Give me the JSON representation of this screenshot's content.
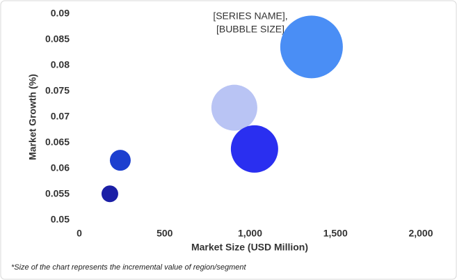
{
  "chart_data": {
    "type": "bubble",
    "xlabel": "Market Size (USD Million)",
    "ylabel": "Market Growth (%)",
    "annotation": [
      "[SERIES NAME],",
      "[BUBBLE SIZE]"
    ],
    "footnote": "*Size of the chart represents the incremental value of region/segment",
    "x": [
      179,
      240,
      908,
      1026,
      1360
    ],
    "values": [
      0.0551,
      0.0616,
      0.0718,
      0.0638,
      0.0836
    ],
    "sizes": [
      144,
      225,
      1089,
      1156,
      2025
    ],
    "colors": [
      "#1b1fa6",
      "#1c3fcf",
      "#b9c4f4",
      "#2a2ff0",
      "#4a8ef5"
    ],
    "xlim": [
      0,
      2000
    ],
    "xticks": [
      0,
      500,
      {
        "value": 1000,
        "label": "1,000"
      },
      {
        "value": 1500,
        "label": "1,500"
      },
      {
        "value": 2000,
        "label": "2,000"
      }
    ],
    "ylim": [
      0.05,
      0.09
    ],
    "yticks": [
      0.05,
      0.055,
      0.06,
      0.065,
      0.07,
      0.075,
      0.08,
      0.085,
      0.09
    ]
  }
}
